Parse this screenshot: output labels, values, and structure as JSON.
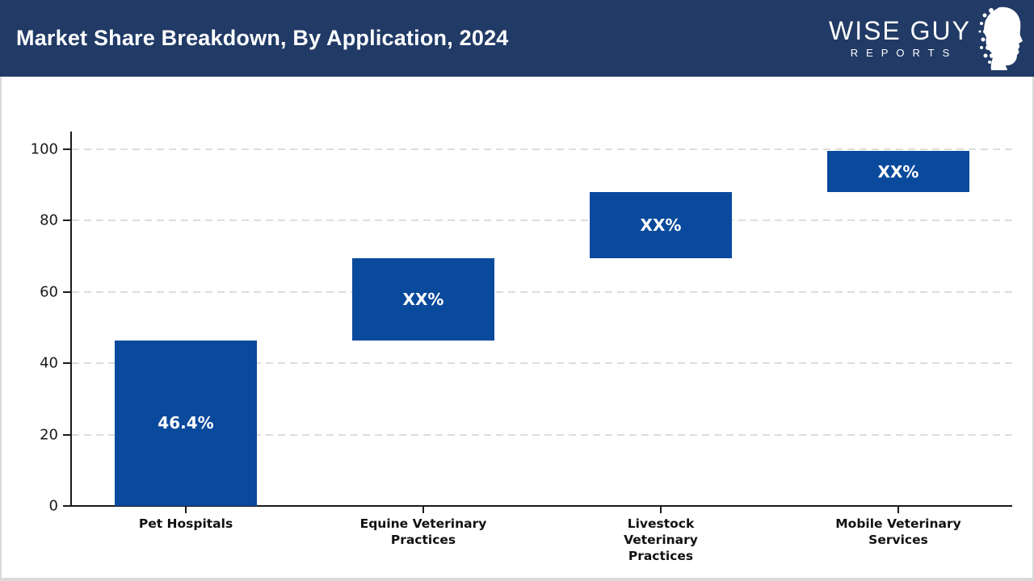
{
  "header": {
    "title": "Market Share Breakdown, By Application, 2024",
    "brand": {
      "line1": "WISE GUY",
      "line2": "REPORTS"
    },
    "bg_color": "#213a66"
  },
  "watermark": {
    "line1": "WISE GU",
    "line2": "REPORTS"
  },
  "colors": {
    "bar": "#0a4a9c",
    "header_navy": "#213a66",
    "grid": "#dddddd",
    "watermark": "#f1f1f1"
  },
  "chart_data": {
    "type": "bar",
    "variant": "floating-segment-breakdown (waterfall-style market share)",
    "title": "Market Share Breakdown, By Application, 2024",
    "categories": [
      "Pet Hospitals",
      "Equine Veterinary Practices",
      "Livestock Veterinary Practices",
      "Mobile Veterinary Services"
    ],
    "category_lines": [
      [
        "Pet Hospitals"
      ],
      [
        "Equine Veterinary",
        "Practices"
      ],
      [
        "Livestock",
        "Veterinary",
        "Practices"
      ],
      [
        "Mobile Veterinary",
        "Services"
      ]
    ],
    "segments": [
      {
        "category": "Pet Hospitals",
        "start": 0,
        "end": 46.4,
        "label": "46.4%"
      },
      {
        "category": "Equine Veterinary Practices",
        "start": 46.4,
        "end": 69.4,
        "label": "XX%"
      },
      {
        "category": "Livestock Veterinary Practices",
        "start": 69.4,
        "end": 88.0,
        "label": "XX%"
      },
      {
        "category": "Mobile Veterinary Services",
        "start": 88.0,
        "end": 99.5,
        "label": "XX%"
      }
    ],
    "bar_labels": [
      "46.4%",
      "XX%",
      "XX%",
      "XX%"
    ],
    "yticks": [
      0,
      20,
      40,
      60,
      80,
      100
    ],
    "ylim": [
      0,
      105
    ],
    "xlabel": "",
    "ylabel": "",
    "grid": "dashed-horizontal",
    "legend": "none",
    "bar_color": "#0a4a9c"
  }
}
